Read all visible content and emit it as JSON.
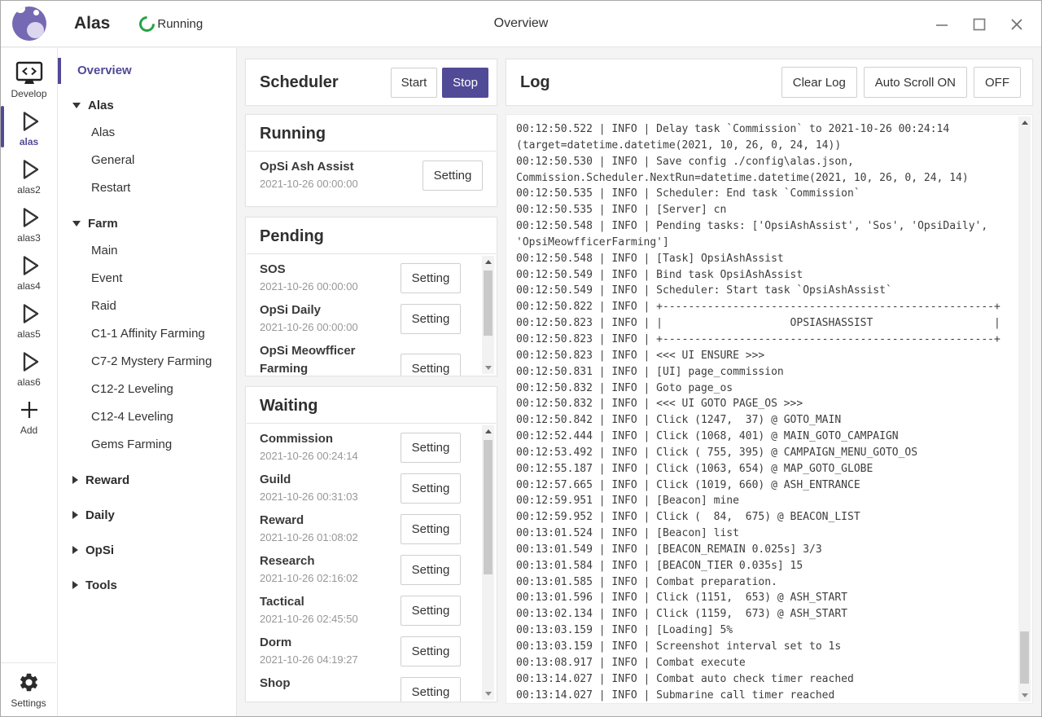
{
  "colors": {
    "accent": "#514a96",
    "running_green": "#25a244"
  },
  "titlebar": {
    "app_title": "Alas",
    "status": "Running",
    "window_title": "Overview"
  },
  "rail": {
    "items": [
      {
        "id": "develop",
        "label": "Develop",
        "icon": "code-monitor",
        "active": false
      },
      {
        "id": "alas",
        "label": "alas",
        "icon": "play",
        "active": true
      },
      {
        "id": "alas2",
        "label": "alas2",
        "icon": "play",
        "active": false
      },
      {
        "id": "alas3",
        "label": "alas3",
        "icon": "play",
        "active": false
      },
      {
        "id": "alas4",
        "label": "alas4",
        "icon": "play",
        "active": false
      },
      {
        "id": "alas5",
        "label": "alas5",
        "icon": "play",
        "active": false
      },
      {
        "id": "alas6",
        "label": "alas6",
        "icon": "play",
        "active": false
      },
      {
        "id": "add",
        "label": "Add",
        "icon": "plus",
        "active": false
      }
    ],
    "settings": {
      "label": "Settings",
      "icon": "gear"
    }
  },
  "nav": {
    "overview_label": "Overview",
    "groups": [
      {
        "label": "Alas",
        "expanded": true,
        "items": [
          "Alas",
          "General",
          "Restart"
        ]
      },
      {
        "label": "Farm",
        "expanded": true,
        "items": [
          "Main",
          "Event",
          "Raid",
          "C1-1 Affinity Farming",
          "C7-2 Mystery Farming",
          "C12-2 Leveling",
          "C12-4 Leveling",
          "Gems Farming"
        ]
      },
      {
        "label": "Reward",
        "expanded": false,
        "items": []
      },
      {
        "label": "Daily",
        "expanded": false,
        "items": []
      },
      {
        "label": "OpSi",
        "expanded": false,
        "items": []
      },
      {
        "label": "Tools",
        "expanded": false,
        "items": []
      }
    ]
  },
  "scheduler": {
    "title": "Scheduler",
    "buttons": {
      "start": "Start",
      "stop": "Stop"
    },
    "setting_button": "Setting",
    "running": {
      "title": "Running",
      "tasks": [
        {
          "name": "OpSi Ash Assist",
          "time": "2021-10-26 00:00:00"
        }
      ]
    },
    "pending": {
      "title": "Pending",
      "tasks": [
        {
          "name": "SOS",
          "time": "2021-10-26 00:00:00"
        },
        {
          "name": "OpSi Daily",
          "time": "2021-10-26 00:00:00"
        },
        {
          "name": "OpSi Meowfficer Farming",
          "time": ""
        }
      ]
    },
    "waiting": {
      "title": "Waiting",
      "tasks": [
        {
          "name": "Commission",
          "time": "2021-10-26 00:24:14"
        },
        {
          "name": "Guild",
          "time": "2021-10-26 00:31:03"
        },
        {
          "name": "Reward",
          "time": "2021-10-26 01:08:02"
        },
        {
          "name": "Research",
          "time": "2021-10-26 02:16:02"
        },
        {
          "name": "Tactical",
          "time": "2021-10-26 02:45:50"
        },
        {
          "name": "Dorm",
          "time": "2021-10-26 04:19:27"
        },
        {
          "name": "Shop",
          "time": ""
        }
      ]
    }
  },
  "log": {
    "title": "Log",
    "buttons": {
      "clear": "Clear Log",
      "autoscroll_on": "Auto Scroll ON",
      "autoscroll_off": "OFF"
    },
    "lines": [
      "00:12:50.522 | INFO | Delay task `Commission` to 2021-10-26 00:24:14",
      "(target=datetime.datetime(2021, 10, 26, 0, 24, 14))",
      "00:12:50.530 | INFO | Save config ./config\\alas.json,",
      "Commission.Scheduler.NextRun=datetime.datetime(2021, 10, 26, 0, 24, 14)",
      "00:12:50.535 | INFO | Scheduler: End task `Commission`",
      "00:12:50.535 | INFO | [Server] cn",
      "00:12:50.548 | INFO | Pending tasks: ['OpsiAshAssist', 'Sos', 'OpsiDaily',",
      "'OpsiMeowfficerFarming']",
      "00:12:50.548 | INFO | [Task] OpsiAshAssist",
      "00:12:50.549 | INFO | Bind task OpsiAshAssist",
      "00:12:50.549 | INFO | Scheduler: Start task `OpsiAshAssist`",
      "00:12:50.822 | INFO | +----------------------------------------------------+",
      "00:12:50.823 | INFO | |                    OPSIASHASSIST                   |",
      "00:12:50.823 | INFO | +----------------------------------------------------+",
      "00:12:50.823 | INFO | <<< UI ENSURE >>>",
      "00:12:50.831 | INFO | [UI] page_commission",
      "00:12:50.832 | INFO | Goto page_os",
      "00:12:50.832 | INFO | <<< UI GOTO PAGE_OS >>>",
      "00:12:50.842 | INFO | Click (1247,  37) @ GOTO_MAIN",
      "00:12:52.444 | INFO | Click (1068, 401) @ MAIN_GOTO_CAMPAIGN",
      "00:12:53.492 | INFO | Click ( 755, 395) @ CAMPAIGN_MENU_GOTO_OS",
      "00:12:55.187 | INFO | Click (1063, 654) @ MAP_GOTO_GLOBE",
      "00:12:57.665 | INFO | Click (1019, 660) @ ASH_ENTRANCE",
      "00:12:59.951 | INFO | [Beacon] mine",
      "00:12:59.952 | INFO | Click (  84,  675) @ BEACON_LIST",
      "00:13:01.524 | INFO | [Beacon] list",
      "00:13:01.549 | INFO | [BEACON_REMAIN 0.025s] 3/3",
      "00:13:01.584 | INFO | [BEACON_TIER 0.035s] 15",
      "00:13:01.585 | INFO | Combat preparation.",
      "00:13:01.596 | INFO | Click (1151,  653) @ ASH_START",
      "00:13:02.134 | INFO | Click (1159,  673) @ ASH_START",
      "00:13:03.159 | INFO | [Loading] 5%",
      "00:13:03.159 | INFO | Screenshot interval set to 1s",
      "00:13:08.917 | INFO | Combat execute",
      "00:13:14.027 | INFO | Combat auto check timer reached",
      "00:13:14.027 | INFO | Submarine call timer reached"
    ]
  }
}
